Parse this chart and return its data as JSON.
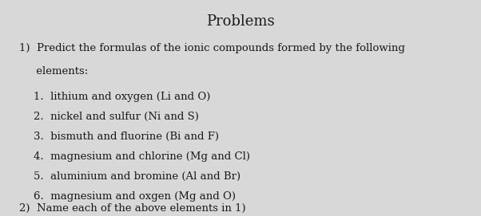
{
  "title": "Problems",
  "background_color": "#d8d8d8",
  "title_fontsize": 13,
  "title_weight": "normal",
  "text_color": "#1a1a1a",
  "body_fontsize": 9.5,
  "q1_line1": "1)  Predict the formulas of the ionic compounds formed by the following",
  "q1_line2": "     elements:",
  "list_items": [
    "1.  lithium and oxygen (Li and O)",
    "2.  nickel and sulfur (Ni and S)",
    "3.  bismuth and fluorine (Bi and F)",
    "4.  magnesium and chlorine (Mg and Cl)",
    "5.  aluminium and bromine (Al and Br)",
    "6.  magnesium and oxgen (Mg and O)"
  ],
  "question2": "2)  Name each of the above elements in 1)",
  "font_family": "DejaVu Serif"
}
